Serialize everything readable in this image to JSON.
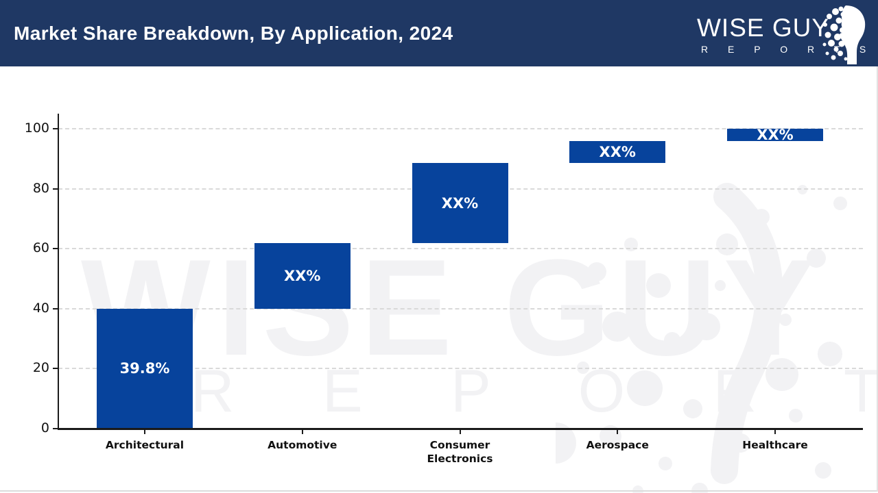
{
  "header": {
    "title": "Market Share Breakdown, By Application, 2024",
    "logo": {
      "line1": "WISE GUY",
      "line2": "R E P O R T S"
    }
  },
  "colors": {
    "header_bg": "#1f3864",
    "bar": "#07439c",
    "grid": "#d9d9d9",
    "axis": "#1a1a1a",
    "value_label": "#ffffff",
    "watermark": "#f2f2f4"
  },
  "chart_data": {
    "type": "bar",
    "subtype": "waterfall",
    "title": "Market Share Breakdown, By Application, 2024",
    "categories": [
      "Architectural",
      "Automotive",
      "Consumer\nElectronics",
      "Aerospace",
      "Healthcare"
    ],
    "segments": [
      {
        "category": "Architectural",
        "start": 0,
        "end": 39.8,
        "label": "39.8%"
      },
      {
        "category": "Automotive",
        "start": 39.8,
        "end": 61.8,
        "label": "XX%"
      },
      {
        "category": "Consumer Electronics",
        "start": 61.8,
        "end": 88.6,
        "label": "XX%"
      },
      {
        "category": "Aerospace",
        "start": 88.6,
        "end": 95.9,
        "label": "XX%"
      },
      {
        "category": "Healthcare",
        "start": 95.9,
        "end": 100,
        "label": "XX%"
      }
    ],
    "xlabel": "",
    "ylabel": "",
    "ylim": [
      0,
      100
    ],
    "yticks": [
      0,
      20,
      40,
      60,
      80,
      100
    ],
    "grid": true,
    "grid_style": "dashed",
    "legend": false
  }
}
